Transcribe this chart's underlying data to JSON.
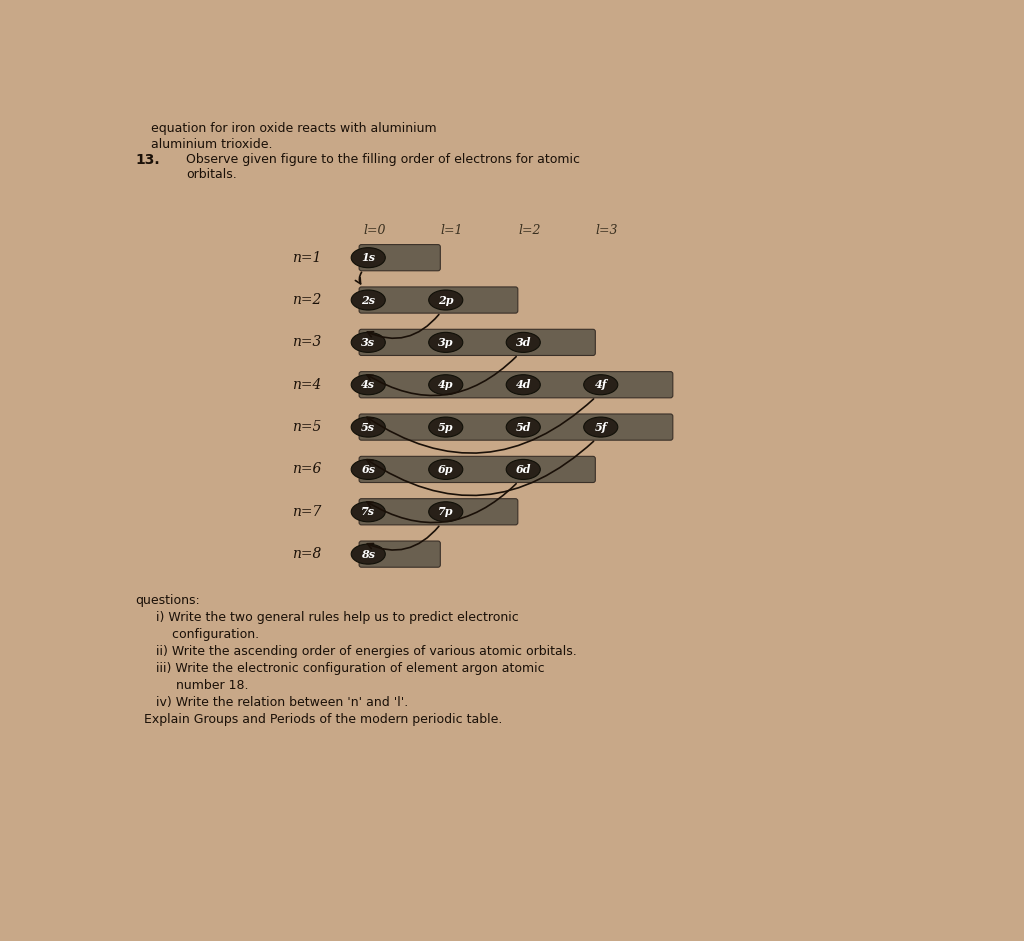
{
  "bg_color": "#c8a888",
  "fig_width": 10.24,
  "fig_height": 9.41,
  "dpi": 100,
  "n_labels": [
    "n=1",
    "n=2",
    "n=3",
    "n=4",
    "n=5",
    "n=6",
    "n=7",
    "n=8"
  ],
  "col_headers": [
    "l=0",
    "l=1",
    "l=2",
    "l=3"
  ],
  "orbitals": [
    {
      "label": "1s",
      "row": 0,
      "col": 0
    },
    {
      "label": "2s",
      "row": 1,
      "col": 0
    },
    {
      "label": "2p",
      "row": 1,
      "col": 1
    },
    {
      "label": "3s",
      "row": 2,
      "col": 0
    },
    {
      "label": "3p",
      "row": 2,
      "col": 1
    },
    {
      "label": "3d",
      "row": 2,
      "col": 2
    },
    {
      "label": "4s",
      "row": 3,
      "col": 0
    },
    {
      "label": "4p",
      "row": 3,
      "col": 1
    },
    {
      "label": "4d",
      "row": 3,
      "col": 2
    },
    {
      "label": "4f",
      "row": 3,
      "col": 3
    },
    {
      "label": "5s",
      "row": 4,
      "col": 0
    },
    {
      "label": "5p",
      "row": 4,
      "col": 1
    },
    {
      "label": "5d",
      "row": 4,
      "col": 2
    },
    {
      "label": "5f",
      "row": 4,
      "col": 3
    },
    {
      "label": "6s",
      "row": 5,
      "col": 0
    },
    {
      "label": "6p",
      "row": 5,
      "col": 1
    },
    {
      "label": "6d",
      "row": 5,
      "col": 2
    },
    {
      "label": "7s",
      "row": 6,
      "col": 0
    },
    {
      "label": "7p",
      "row": 6,
      "col": 1
    },
    {
      "label": "8s",
      "row": 7,
      "col": 0
    }
  ],
  "strip_fc": "#6a6050",
  "strip_ec": "#3a3028",
  "oval_fc": "#282018",
  "oval_ec": "#111008",
  "oval_text_color": "#ffffff",
  "arrow_color": "#1a1008",
  "text_color": "#1a1008",
  "top_lines": [
    "equation for iron oxide reacts with aluminium",
    "aluminium trioxide."
  ],
  "q13_line1": "Observe given figure to the filling order of electrons for atomic",
  "q13_line2": "orbitals.",
  "bottom_lines": [
    "uestions:",
    "   i) Write the two general rules help us to predict electronic",
    "       configuration.",
    "   ii) Write the ascending order of energies of various atomic orbitals.",
    "   iii) Write the electronic configuration of element argon atomic",
    "        number 18.",
    "   iv) Write the relation between 'n' and 'l'.",
    "Explain Groups and Periods of the modern periodic table."
  ]
}
